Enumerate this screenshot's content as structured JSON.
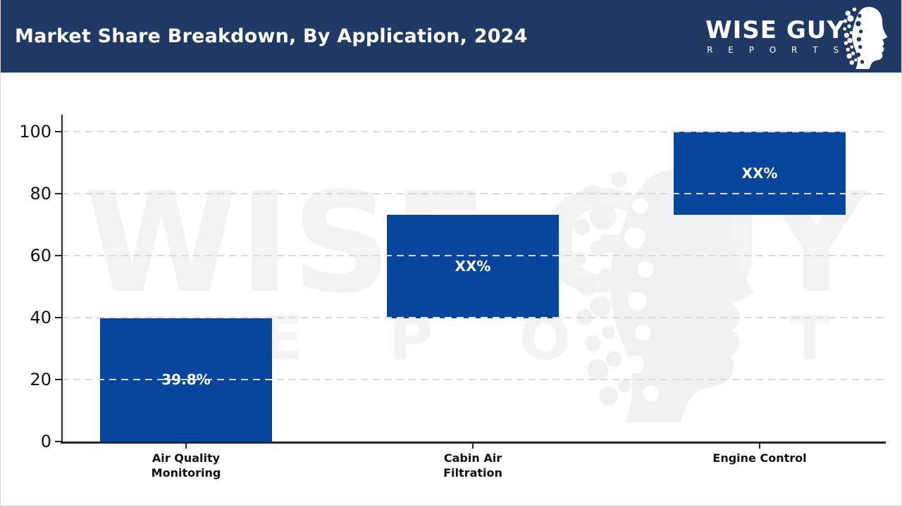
{
  "header": {
    "title": "Market Share Breakdown, By Application, 2024",
    "logo": {
      "wordmark": "WISE GUY",
      "sub": "R E P O R T S",
      "face_icon": "dotted-head-profile-icon"
    }
  },
  "watermark": {
    "wordmark": "WISE GUY",
    "sub": "R E P O R T S",
    "face_icon": "dotted-head-profile-icon"
  },
  "colors": {
    "header_bg": "#1f3864",
    "bar": "#05459c",
    "bar_label": "#ffffff",
    "axis": "#262626",
    "grid": "#dadada",
    "watermark": "#f3f3f3"
  },
  "chart_data": {
    "type": "bar",
    "subtype": "waterfall-stacked-share",
    "title": "Market Share Breakdown, By Application, 2024",
    "categories": [
      "Air Quality Monitoring",
      "Cabin Air Filtration",
      "Engine Control"
    ],
    "category_label_lines": [
      [
        "Air Quality",
        "Monitoring"
      ],
      [
        "Cabin Air",
        "Filtration"
      ],
      [
        "Engine Control"
      ]
    ],
    "series": [
      {
        "name": "Air Quality Monitoring",
        "start": 0,
        "end": 39.8,
        "label": "39.8%"
      },
      {
        "name": "Cabin Air Filtration",
        "start": 39.8,
        "end": 73.2,
        "label": "XX%"
      },
      {
        "name": "Engine Control",
        "start": 73.2,
        "end": 100,
        "label": "XX%"
      }
    ],
    "xlabel": "",
    "ylabel": "",
    "ylim": [
      0,
      100
    ],
    "yticks": [
      0,
      20,
      40,
      60,
      80,
      100
    ],
    "grid": true,
    "grid_style": "dashed",
    "legend": "none"
  }
}
